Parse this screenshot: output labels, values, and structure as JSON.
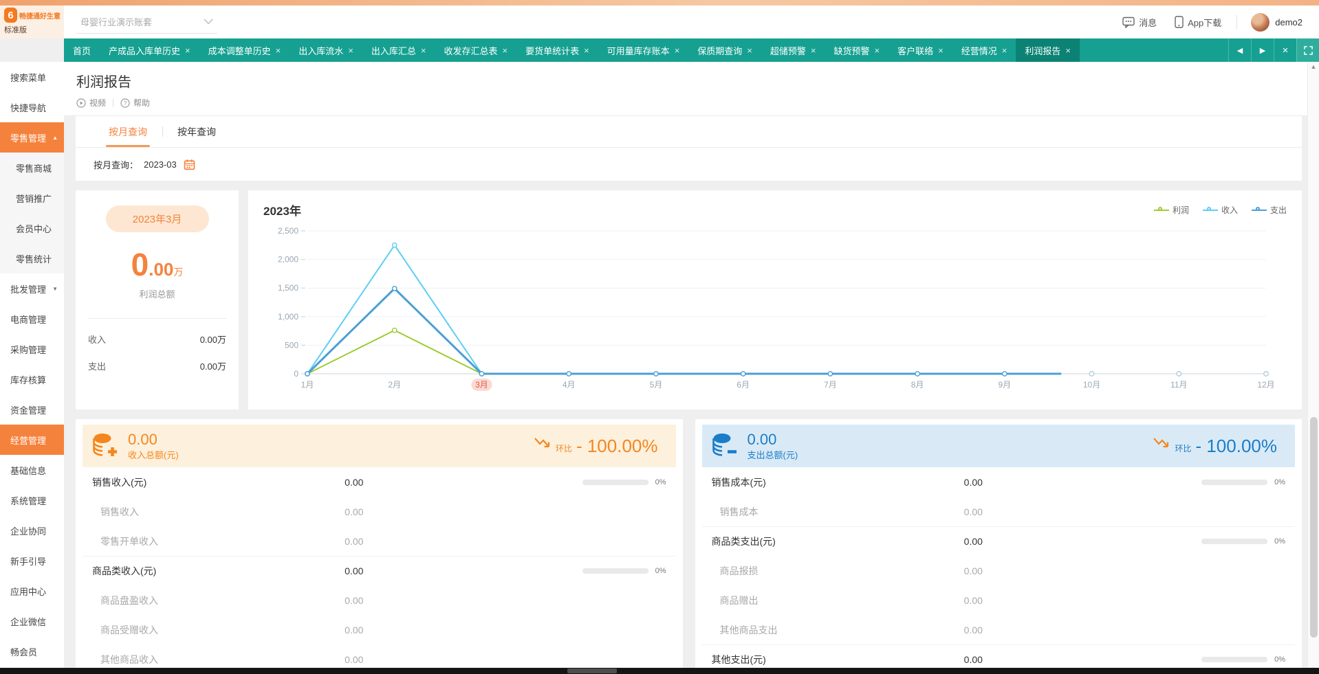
{
  "brand": {
    "name": "畅捷通好生意",
    "edition": "标准版",
    "logo_glyph": "6"
  },
  "header": {
    "workspace": "母婴行业演示账套",
    "messages_label": "消息",
    "app_download_label": "App下载",
    "username": "demo2"
  },
  "tabs": {
    "items": [
      {
        "label": "首页",
        "closable": false
      },
      {
        "label": "产成品入库单历史",
        "closable": true
      },
      {
        "label": "成本调整单历史",
        "closable": true
      },
      {
        "label": "出入库流水",
        "closable": true
      },
      {
        "label": "出入库汇总",
        "closable": true
      },
      {
        "label": "收发存汇总表",
        "closable": true
      },
      {
        "label": "要货单统计表",
        "closable": true
      },
      {
        "label": "可用量库存账本",
        "closable": true
      },
      {
        "label": "保质期查询",
        "closable": true
      },
      {
        "label": "超储预警",
        "closable": true
      },
      {
        "label": "缺货预警",
        "closable": true
      },
      {
        "label": "客户联络",
        "closable": true
      },
      {
        "label": "经营情况",
        "closable": true
      },
      {
        "label": "利润报告",
        "closable": true,
        "active": true
      }
    ]
  },
  "sidebar": {
    "items": [
      {
        "label": "搜索菜单"
      },
      {
        "label": "快捷导航"
      },
      {
        "label": "零售管理",
        "active": true,
        "arrowUp": true
      },
      {
        "label": "零售商城",
        "sub": true
      },
      {
        "label": "营销推广",
        "sub": true
      },
      {
        "label": "会员中心",
        "sub": true
      },
      {
        "label": "零售统计",
        "sub": true
      },
      {
        "label": "批发管理",
        "arrowDown": true
      },
      {
        "label": "电商管理"
      },
      {
        "label": "采购管理"
      },
      {
        "label": "库存核算"
      },
      {
        "label": "资金管理"
      },
      {
        "label": "经营管理",
        "active": true
      },
      {
        "label": "基础信息"
      },
      {
        "label": "系统管理"
      },
      {
        "label": "企业协同"
      },
      {
        "label": "新手引导"
      },
      {
        "label": "应用中心"
      },
      {
        "label": "企业微信"
      },
      {
        "label": "畅会员"
      }
    ]
  },
  "page": {
    "title": "利润报告",
    "video_label": "视频",
    "help_label": "帮助",
    "subtabs": [
      {
        "label": "按月查询",
        "active": true
      },
      {
        "label": "按年查询",
        "active": false
      }
    ],
    "filter_label": "按月查询：",
    "filter_value": "2023-03"
  },
  "summary": {
    "period": "2023年3月",
    "amount_int": "0",
    "amount_dec": ".00",
    "amount_unit": "万",
    "amount_label": "利润总额",
    "rows": [
      {
        "label": "收入",
        "value": "0.00万"
      },
      {
        "label": "支出",
        "value": "0.00万"
      }
    ]
  },
  "chart_data": {
    "type": "line",
    "title": "2023年",
    "categories": [
      "1月",
      "2月",
      "3月",
      "4月",
      "5月",
      "6月",
      "7月",
      "8月",
      "9月",
      "10月",
      "11月",
      "12月"
    ],
    "highlight_category": "3月",
    "series": [
      {
        "name": "利润",
        "color": "#9ecb34",
        "values": [
          0,
          760,
          0
        ]
      },
      {
        "name": "收入",
        "color": "#5ecef2",
        "values": [
          0,
          2250,
          0
        ]
      },
      {
        "name": "支出",
        "color": "#4b9fd6",
        "values": [
          0,
          1490,
          0,
          0,
          0,
          0,
          0,
          0,
          0
        ],
        "thick": true,
        "extend": 0.65
      }
    ],
    "ylim": [
      0,
      2500
    ],
    "ytick_step": 500,
    "no_data_categories": [
      "10月",
      "11月",
      "12月"
    ],
    "grid": true,
    "legend_position": "top-right"
  },
  "income_card": {
    "value": "0.00",
    "label": "收入总额(元)",
    "mom_label": "环比",
    "mom_value": "- 100.00%",
    "accent": "#f5861f",
    "rows": [
      {
        "label": "销售收入(元)",
        "value": "0.00",
        "pct": "0%",
        "section": true,
        "bar": true
      },
      {
        "label": "销售收入",
        "value": "0.00"
      },
      {
        "label": "零售开单收入",
        "value": "0.00"
      },
      {
        "label": "商品类收入(元)",
        "value": "0.00",
        "pct": "0%",
        "section": true,
        "bar": true
      },
      {
        "label": "商品盘盈收入",
        "value": "0.00"
      },
      {
        "label": "商品受赠收入",
        "value": "0.00"
      },
      {
        "label": "其他商品收入",
        "value": "0.00"
      }
    ]
  },
  "expense_card": {
    "value": "0.00",
    "label": "支出总额(元)",
    "mom_label": "环比",
    "mom_value": "- 100.00%",
    "accent": "#1b7dc8",
    "rows": [
      {
        "label": "销售成本(元)",
        "value": "0.00",
        "pct": "0%",
        "section": true,
        "bar": true
      },
      {
        "label": "销售成本",
        "value": "0.00"
      },
      {
        "label": "商品类支出(元)",
        "value": "0.00",
        "pct": "0%",
        "section": true,
        "bar": true
      },
      {
        "label": "商品报损",
        "value": "0.00"
      },
      {
        "label": "商品赠出",
        "value": "0.00"
      },
      {
        "label": "其他商品支出",
        "value": "0.00"
      },
      {
        "label": "其他支出(元)",
        "value": "0.00",
        "pct": "0%",
        "section": true,
        "bar": true
      }
    ]
  }
}
